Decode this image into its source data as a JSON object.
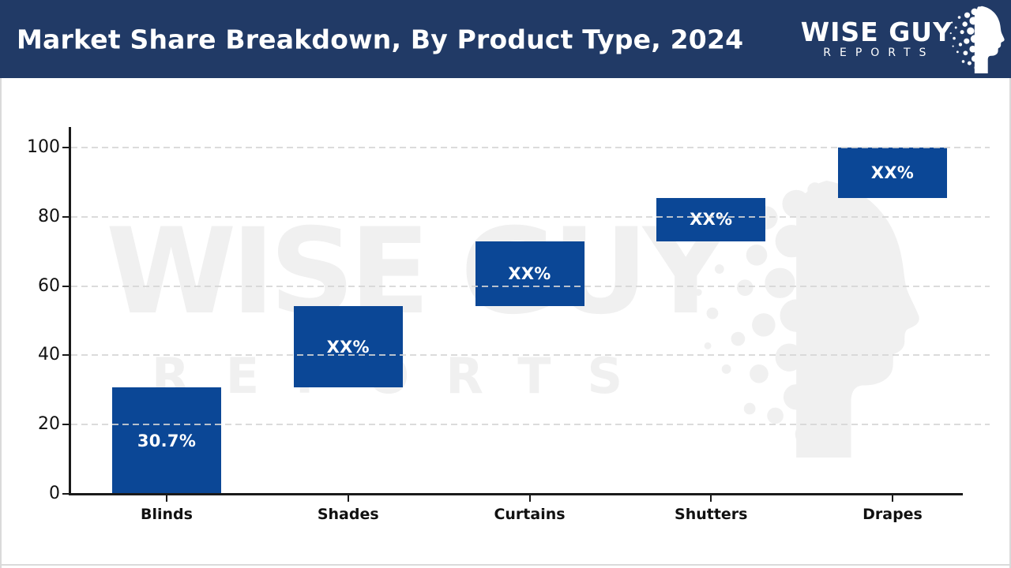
{
  "header": {
    "title": "Market Share Breakdown, By Product Type, 2024",
    "logo": {
      "line1": "WISE GUY",
      "line2": "REPORTS"
    }
  },
  "watermark": {
    "line1": "WISE GUY",
    "line2": "REPORTS"
  },
  "chart_data": {
    "type": "waterfall",
    "title": "Market Share Breakdown, By Product Type, 2024",
    "categories": [
      "Blinds",
      "Shades",
      "Curtains",
      "Shutters",
      "Drapes"
    ],
    "segments": [
      {
        "category": "Blinds",
        "start": 0,
        "end": 30.7,
        "label": "30.7%"
      },
      {
        "category": "Shades",
        "start": 30.7,
        "end": 54.2,
        "label": "XX%"
      },
      {
        "category": "Curtains",
        "start": 54.2,
        "end": 72.9,
        "label": "XX%"
      },
      {
        "category": "Shutters",
        "start": 72.9,
        "end": 85.4,
        "label": "XX%"
      },
      {
        "category": "Drapes",
        "start": 85.4,
        "end": 100,
        "label": "XX%"
      }
    ],
    "y_ticks": [
      0,
      20,
      40,
      60,
      80,
      100
    ],
    "ylim": [
      0,
      105
    ],
    "xlabel": "",
    "ylabel": "",
    "grid": "dashed-horizontal",
    "legend": "none",
    "colors": {
      "bar": "#0B4796",
      "bar_label": "#FFFFFF",
      "grid": "#D5D5D5",
      "axis": "#1A1A1A",
      "header_bg": "#213A66",
      "watermark": "#F0F0F0"
    }
  }
}
